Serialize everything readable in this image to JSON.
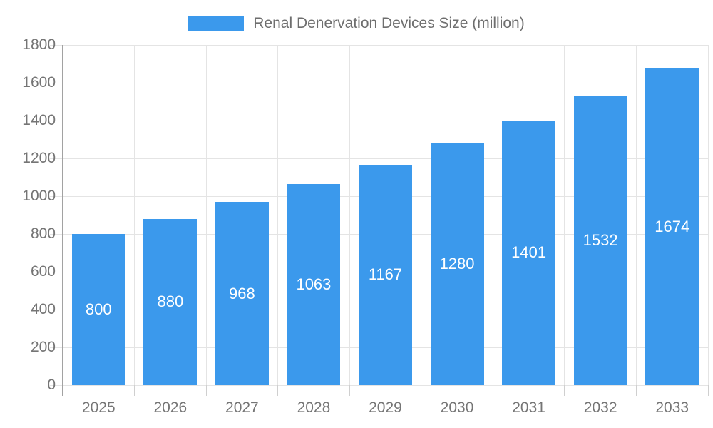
{
  "chart_data": {
    "type": "bar",
    "title": "Renal Denervation Devices Size (million)",
    "categories": [
      "2025",
      "2026",
      "2027",
      "2028",
      "2029",
      "2030",
      "2031",
      "2032",
      "2033"
    ],
    "values": [
      800,
      880,
      968,
      1063,
      1167,
      1280,
      1401,
      1532,
      1674
    ],
    "series": [
      {
        "name": "Renal Denervation Devices Size (million)",
        "values": [
          800,
          880,
          968,
          1063,
          1167,
          1280,
          1401,
          1532,
          1674
        ]
      }
    ],
    "xlabel": "",
    "ylabel": "",
    "ylim": [
      0,
      1800
    ],
    "ytick_step": 200,
    "yticks": [
      0,
      200,
      400,
      600,
      800,
      1000,
      1200,
      1400,
      1600,
      1800
    ],
    "grid": true,
    "legend_position": "top-center",
    "value_labels": "inside-center",
    "colors": {
      "bar": "#3B99EC",
      "value_label": "#FFFFFF",
      "axis_text": "#757575",
      "legend_text": "#6E6E6E",
      "gridline": "#E4E4E4",
      "axis_line": "#A2A2A2",
      "tick": "#CFCFCF",
      "background": "#FFFFFF"
    }
  }
}
